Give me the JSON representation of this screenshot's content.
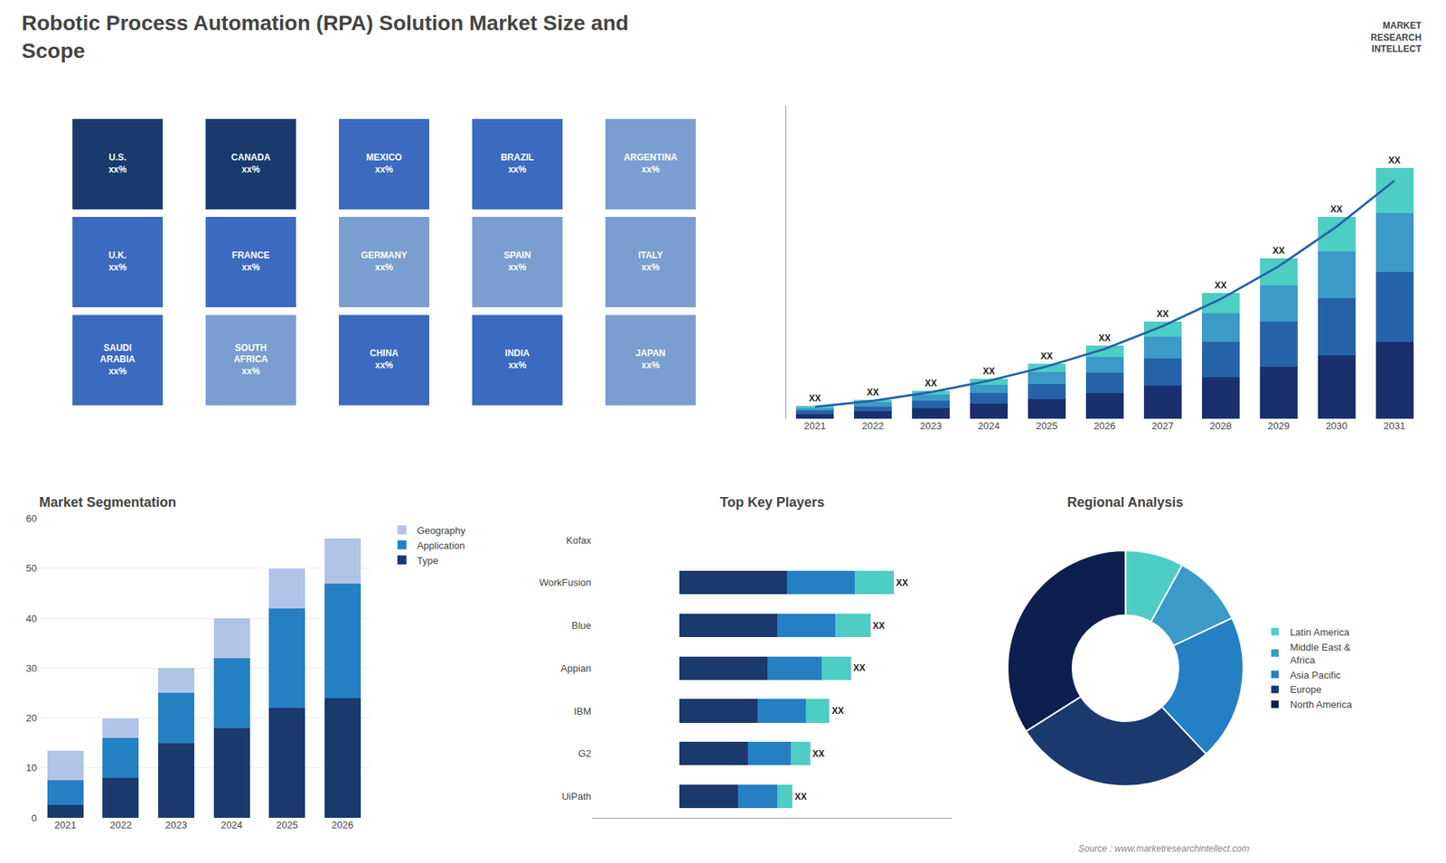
{
  "title": "Robotic Process Automation (RPA) Solution Market Size and\nScope",
  "annotations": [
    "Source : www.marketresearchintellect.com",
    "MARKET",
    "RESEARCH",
    "INTELLECT"
  ],
  "chart_data": [
    {
      "type": "tilemap",
      "categories": [
        "U.S.\nxx%",
        "CANADA\nxx%",
        "MEXICO\nxx%",
        "BRAZIL\nxx%",
        "ARGENTINA\nxx%",
        "U.K.\nxx%",
        "FRANCE\nxx%",
        "GERMANY\nxx%",
        "SPAIN\nxx%",
        "ITALY\nxx%",
        "SAUDI\nARABIA\nxx%",
        "SOUTH\nAFRICA\nxx%",
        "CHINA\nxx%",
        "INDIA\nxx%",
        "JAPAN\nxx%"
      ],
      "colors": [
        "#1a3a6e",
        "#1a3a6e",
        "#3b6abf",
        "#3b6abf",
        "#7a9ed0",
        "#3b6abf",
        "#3b6abf",
        "#7a9ed0",
        "#7a9ed0",
        "#7a9ed0",
        "#3b6abf",
        "#7a9ed0",
        "#3b6abf",
        "#3b6abf",
        "#7a9ed0"
      ]
    },
    {
      "type": "bar",
      "stacked": true,
      "categories": [
        "2021",
        "2022",
        "2023",
        "2024",
        "2025",
        "2026",
        "2027",
        "2028",
        "2029",
        "2030",
        "2031"
      ],
      "series": [
        {
          "color": "#1a2f6e",
          "values": [
            1.5,
            2.2,
            3.2,
            4.5,
            6.0,
            7.8,
            10.0,
            12.5,
            15.5,
            19.0,
            23.0
          ]
        },
        {
          "color": "#2563a8",
          "values": [
            1.0,
            1.5,
            2.2,
            3.2,
            4.5,
            6.0,
            8.0,
            10.5,
            13.5,
            17.0,
            21.0
          ]
        },
        {
          "color": "#3b9ac7",
          "values": [
            0.8,
            1.2,
            1.8,
            2.5,
            3.5,
            4.8,
            6.5,
            8.5,
            11.0,
            14.0,
            17.5
          ]
        },
        {
          "color": "#4ecdc4",
          "values": [
            0.5,
            0.8,
            1.2,
            1.8,
            2.5,
            3.4,
            4.7,
            6.2,
            8.0,
            10.5,
            13.5
          ]
        },
        {
          "type": "line",
          "color": "#2563a8",
          "values": [
            3.61,
            5.415,
            7.98,
            11.4,
            15.675,
            20.9,
            27.74,
            35.815,
            45.6,
            57.475,
            71.25
          ]
        }
      ],
      "annotations": [
        "XX",
        "XX",
        "XX",
        "XX",
        "XX",
        "XX",
        "XX",
        "XX",
        "XX",
        "XX",
        "XX"
      ],
      "ylim": [
        0,
        93.75
      ],
      "tick_labels": "x",
      "grid": false
    },
    {
      "type": "bar",
      "stacked": true,
      "title": "Market Segmentation",
      "categories": [
        "2021",
        "2022",
        "2023",
        "2024",
        "2025",
        "2026"
      ],
      "series": [
        {
          "name": "Type",
          "color": "#1a3a6e",
          "values": [
            2.5,
            8.0,
            15.0,
            18.0,
            22.0,
            24.0
          ]
        },
        {
          "name": "Application",
          "color": "#2580c3",
          "values": [
            5.0,
            8.0,
            10.0,
            14.0,
            20.0,
            23.0
          ]
        },
        {
          "name": "Geography",
          "color": "#b0c4e8",
          "values": [
            6.0,
            4.0,
            5.0,
            8.0,
            8.0,
            9.0
          ]
        }
      ],
      "ylim": [
        0,
        60
      ],
      "yticks": [
        0,
        10,
        20,
        30,
        40,
        50,
        60
      ],
      "grid": true,
      "legend": "right"
    },
    {
      "type": "bar",
      "stacked": true,
      "orientation": "horizontal",
      "title": "Top Key Players",
      "categories": [
        "Kofax",
        "WorkFusion",
        "Blue",
        "Appian",
        "IBM",
        "G2",
        "UiPath"
      ],
      "series": [
        {
          "color": "#1a3a6e",
          "values": [
            0,
            5.5,
            5.0,
            4.5,
            4.0,
            3.5,
            3.0
          ]
        },
        {
          "color": "#2580c3",
          "values": [
            0,
            3.5,
            3.0,
            2.8,
            2.5,
            2.2,
            2.0
          ]
        },
        {
          "color": "#4ecdc4",
          "values": [
            0,
            2.0,
            1.8,
            1.5,
            1.2,
            1.0,
            0.8
          ]
        }
      ],
      "annotations": [
        null,
        "XX",
        "XX",
        "XX",
        "XX",
        "XX",
        "XX"
      ],
      "xlim": [
        -4.5,
        14
      ],
      "tick_labels": "y",
      "grid": false
    },
    {
      "type": "pie",
      "title": "Regional Analysis",
      "categories": [
        "Latin America",
        "Middle East &\nAfrica",
        "Asia Pacific",
        "Europe",
        "North America"
      ],
      "values": [
        8,
        10,
        20,
        28,
        34
      ],
      "colors": [
        "#4ecdc4",
        "#3b9ac7",
        "#2580c3",
        "#1a3a6e",
        "#0d1f4e"
      ],
      "legend": "right"
    }
  ]
}
